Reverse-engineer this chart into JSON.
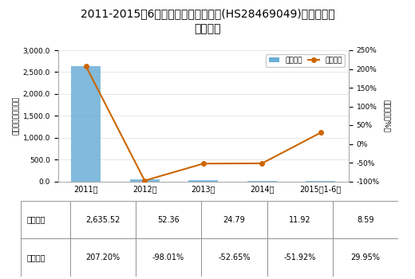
{
  "title_line1": "2011-2015年6月其他未混合碳酸稀土(HS28469049)出口总额及",
  "title_line2": "增速统计",
  "categories": [
    "2011年",
    "2012年",
    "2013年",
    "2014年",
    "2015年1-6月"
  ],
  "bar_values": [
    2635.52,
    52.36,
    24.79,
    11.92,
    8.59
  ],
  "line_values": [
    207.2,
    -98.01,
    -52.65,
    -51.92,
    29.95
  ],
  "bar_color": "#6baed6",
  "line_color": "#cc6600",
  "left_ylim": [
    0,
    3000
  ],
  "left_yticks": [
    0.0,
    500.0,
    1000.0,
    1500.0,
    2000.0,
    2500.0,
    3000.0
  ],
  "right_ylim": [
    -100,
    250
  ],
  "right_yticks": [
    -100,
    -50,
    0,
    50,
    100,
    150,
    200,
    250
  ],
  "left_ylabel": "出口金额（万美元）",
  "right_ylabel": "同比增长（%）",
  "legend_bar": "出口金额",
  "legend_line": "同比增长",
  "table_row1_label": "出口金额",
  "table_row2_label": "同比增长",
  "table_row1_values": [
    "2,635.52",
    "52.36",
    "24.79",
    "11.92",
    "8.59"
  ],
  "table_row2_values": [
    "207.20%",
    "-98.01%",
    "-52.65%",
    "-51.92%",
    "29.95%"
  ],
  "background_color": "#ffffff"
}
